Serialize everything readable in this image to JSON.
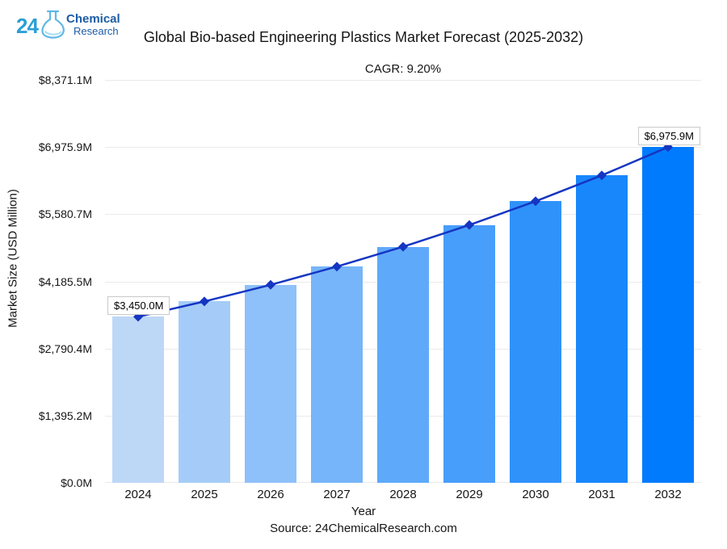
{
  "page": {
    "source": "Source: 24ChemicalResearch.com"
  },
  "logo": {
    "number": "24",
    "line1": "Chemical",
    "line2": "Research",
    "flask_color": "#5fb8e5",
    "text_color": "#1c5ca5"
  },
  "chart_data": {
    "type": "bar",
    "overlay": "line",
    "title": "Global Bio-based Engineering Plastics Market Forecast (2025-2032)",
    "subtitle": "CAGR: 9.20%",
    "xlabel": "Year",
    "ylabel": "Market Size (USD Million)",
    "categories": [
      "2024",
      "2025",
      "2026",
      "2027",
      "2028",
      "2029",
      "2030",
      "2031",
      "2032"
    ],
    "values": [
      3450.0,
      3767.4,
      4114.0,
      4492.5,
      4905.8,
      5357.1,
      5850.0,
      6388.2,
      6975.9
    ],
    "ylim": [
      0,
      8371.1
    ],
    "ytick_values": [
      0,
      1395.2,
      2790.4,
      4185.5,
      5580.7,
      6975.9,
      8371.1
    ],
    "ytick_labels": [
      "$0.0M",
      "$1,395.2M",
      "$2,790.4M",
      "$4,185.5M",
      "$5,580.7M",
      "$6,975.9M",
      "$8,371.1M"
    ],
    "grid": true,
    "legend": "none",
    "bar_colors": [
      "#bdd7f7",
      "#a5ccf8",
      "#8ec0f9",
      "#76b5f9",
      "#5fa9fa",
      "#479efb",
      "#2f92fb",
      "#1887fc",
      "#007bfd"
    ],
    "line_color": "#1536c2",
    "annotations": [
      {
        "index": 0,
        "label": "$3,450.0M",
        "align": "left"
      },
      {
        "index": 8,
        "label": "$6,975.9M",
        "align": "right"
      }
    ]
  }
}
